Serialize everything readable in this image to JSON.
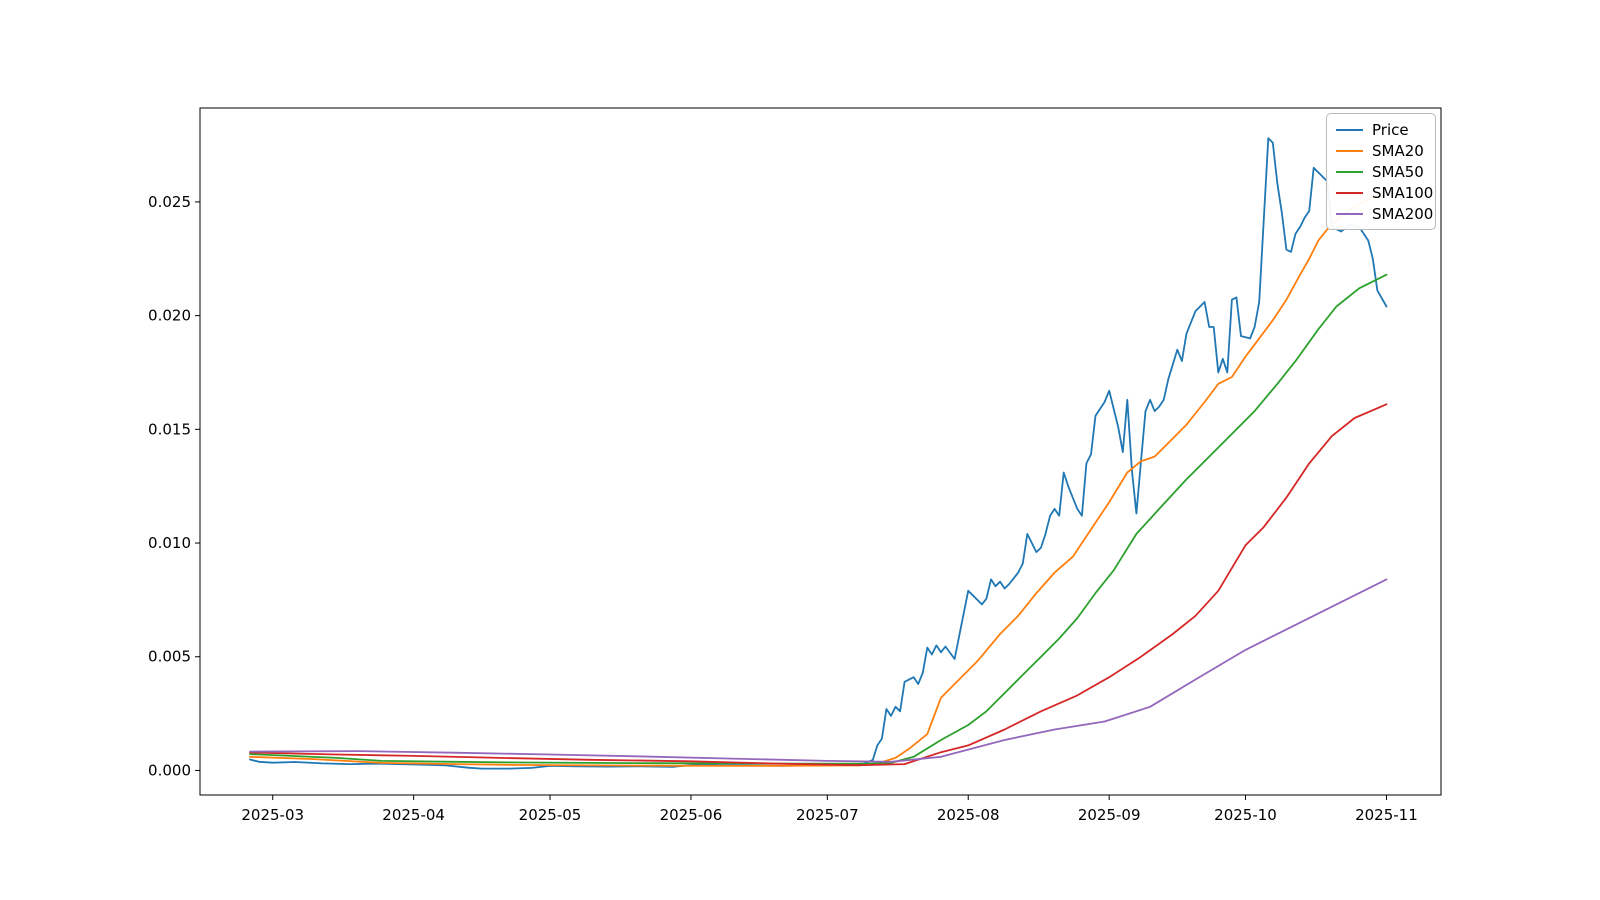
{
  "figure": {
    "background": "#ffffff",
    "legend_title": "",
    "legend_position": "upper right"
  },
  "chart_data": {
    "type": "line",
    "title": "",
    "xlabel": "",
    "ylabel": "",
    "grid": false,
    "legend_position": "upper right",
    "x_range": [
      "2025-02-13",
      "2025-11-13"
    ],
    "y_range": [
      -0.00108,
      0.02913
    ],
    "x_ticks": [
      {
        "date": "2025-03-01",
        "label": "2025-03"
      },
      {
        "date": "2025-04-01",
        "label": "2025-04"
      },
      {
        "date": "2025-05-01",
        "label": "2025-05"
      },
      {
        "date": "2025-06-01",
        "label": "2025-06"
      },
      {
        "date": "2025-07-01",
        "label": "2025-07"
      },
      {
        "date": "2025-08-01",
        "label": "2025-08"
      },
      {
        "date": "2025-09-01",
        "label": "2025-09"
      },
      {
        "date": "2025-10-01",
        "label": "2025-10"
      },
      {
        "date": "2025-11-01",
        "label": "2025-11"
      }
    ],
    "y_ticks": [
      {
        "value": 0.0,
        "label": "0.000"
      },
      {
        "value": 0.005,
        "label": "0.005"
      },
      {
        "value": 0.01,
        "label": "0.010"
      },
      {
        "value": 0.015,
        "label": "0.015"
      },
      {
        "value": 0.02,
        "label": "0.020"
      },
      {
        "value": 0.025,
        "label": "0.025"
      }
    ],
    "series": [
      {
        "name": "Price",
        "color": "#1f77b4",
        "points": [
          [
            "2025-02-24",
            0.00048
          ],
          [
            "2025-02-26",
            0.00038
          ],
          [
            "2025-03-01",
            0.00034
          ],
          [
            "2025-03-06",
            0.00037
          ],
          [
            "2025-03-12",
            0.00031
          ],
          [
            "2025-03-18",
            0.00028
          ],
          [
            "2025-03-24",
            0.0003
          ],
          [
            "2025-04-01",
            0.00026
          ],
          [
            "2025-04-08",
            0.00022
          ],
          [
            "2025-04-13",
            0.00012
          ],
          [
            "2025-04-16",
            8e-05
          ],
          [
            "2025-04-22",
            8e-05
          ],
          [
            "2025-04-27",
            0.00011
          ],
          [
            "2025-05-01",
            0.0002
          ],
          [
            "2025-05-07",
            0.00018
          ],
          [
            "2025-05-14",
            0.00017
          ],
          [
            "2025-05-21",
            0.00018
          ],
          [
            "2025-05-28",
            0.00016
          ],
          [
            "2025-06-03",
            0.00028
          ],
          [
            "2025-06-07",
            0.00024
          ],
          [
            "2025-06-14",
            0.00022
          ],
          [
            "2025-06-21",
            0.0002
          ],
          [
            "2025-06-28",
            0.00023
          ],
          [
            "2025-07-04",
            0.00026
          ],
          [
            "2025-07-09",
            0.0003
          ],
          [
            "2025-07-11",
            0.00046
          ],
          [
            "2025-07-12",
            0.0011
          ],
          [
            "2025-07-13",
            0.0014
          ],
          [
            "2025-07-14",
            0.0027
          ],
          [
            "2025-07-15",
            0.0024
          ],
          [
            "2025-07-16",
            0.0028
          ],
          [
            "2025-07-17",
            0.0026
          ],
          [
            "2025-07-18",
            0.0039
          ],
          [
            "2025-07-20",
            0.0041
          ],
          [
            "2025-07-21",
            0.0038
          ],
          [
            "2025-07-22",
            0.0043
          ],
          [
            "2025-07-23",
            0.0054
          ],
          [
            "2025-07-24",
            0.0051
          ],
          [
            "2025-07-25",
            0.0055
          ],
          [
            "2025-07-26",
            0.0052
          ],
          [
            "2025-07-27",
            0.00545
          ],
          [
            "2025-07-29",
            0.0049
          ],
          [
            "2025-08-01",
            0.0079
          ],
          [
            "2025-08-02",
            0.0077
          ],
          [
            "2025-08-04",
            0.0073
          ],
          [
            "2025-08-05",
            0.00755
          ],
          [
            "2025-08-06",
            0.0084
          ],
          [
            "2025-08-07",
            0.0081
          ],
          [
            "2025-08-08",
            0.0083
          ],
          [
            "2025-08-09",
            0.008
          ],
          [
            "2025-08-10",
            0.0082
          ],
          [
            "2025-08-12",
            0.0087
          ],
          [
            "2025-08-13",
            0.0091
          ],
          [
            "2025-08-14",
            0.0104
          ],
          [
            "2025-08-16",
            0.0096
          ],
          [
            "2025-08-17",
            0.0098
          ],
          [
            "2025-08-18",
            0.0104
          ],
          [
            "2025-08-19",
            0.0112
          ],
          [
            "2025-08-20",
            0.0115
          ],
          [
            "2025-08-21",
            0.0112
          ],
          [
            "2025-08-22",
            0.0131
          ],
          [
            "2025-08-23",
            0.0125
          ],
          [
            "2025-08-25",
            0.0115
          ],
          [
            "2025-08-26",
            0.0112
          ],
          [
            "2025-08-27",
            0.0135
          ],
          [
            "2025-08-28",
            0.0139
          ],
          [
            "2025-08-29",
            0.0156
          ],
          [
            "2025-08-31",
            0.0162
          ],
          [
            "2025-09-01",
            0.0167
          ],
          [
            "2025-09-02",
            0.0159
          ],
          [
            "2025-09-03",
            0.0151
          ],
          [
            "2025-09-04",
            0.014
          ],
          [
            "2025-09-05",
            0.0163
          ],
          [
            "2025-09-06",
            0.0132
          ],
          [
            "2025-09-07",
            0.0113
          ],
          [
            "2025-09-08",
            0.0136
          ],
          [
            "2025-09-09",
            0.0158
          ],
          [
            "2025-09-10",
            0.0163
          ],
          [
            "2025-09-11",
            0.0158
          ],
          [
            "2025-09-12",
            0.016
          ],
          [
            "2025-09-13",
            0.0163
          ],
          [
            "2025-09-14",
            0.0172
          ],
          [
            "2025-09-16",
            0.0185
          ],
          [
            "2025-09-17",
            0.018
          ],
          [
            "2025-09-18",
            0.0192
          ],
          [
            "2025-09-20",
            0.0202
          ],
          [
            "2025-09-22",
            0.0206
          ],
          [
            "2025-09-23",
            0.0195
          ],
          [
            "2025-09-24",
            0.0195
          ],
          [
            "2025-09-25",
            0.0175
          ],
          [
            "2025-09-26",
            0.0181
          ],
          [
            "2025-09-27",
            0.0175
          ],
          [
            "2025-09-28",
            0.0207
          ],
          [
            "2025-09-29",
            0.0208
          ],
          [
            "2025-09-30",
            0.0191
          ],
          [
            "2025-10-02",
            0.019
          ],
          [
            "2025-10-03",
            0.0195
          ],
          [
            "2025-10-04",
            0.0206
          ],
          [
            "2025-10-06",
            0.0278
          ],
          [
            "2025-10-07",
            0.0276
          ],
          [
            "2025-10-08",
            0.0258
          ],
          [
            "2025-10-09",
            0.0245
          ],
          [
            "2025-10-10",
            0.0229
          ],
          [
            "2025-10-11",
            0.0228
          ],
          [
            "2025-10-12",
            0.0236
          ],
          [
            "2025-10-13",
            0.0239
          ],
          [
            "2025-10-14",
            0.0243
          ],
          [
            "2025-10-15",
            0.0246
          ],
          [
            "2025-10-16",
            0.0265
          ],
          [
            "2025-10-17",
            0.0263
          ],
          [
            "2025-10-19",
            0.0259
          ],
          [
            "2025-10-20",
            0.0239
          ],
          [
            "2025-10-22",
            0.0237
          ],
          [
            "2025-10-24",
            0.024
          ],
          [
            "2025-10-26",
            0.0239
          ],
          [
            "2025-10-28",
            0.0233
          ],
          [
            "2025-10-29",
            0.0225
          ],
          [
            "2025-10-30",
            0.0211
          ],
          [
            "2025-11-01",
            0.0204
          ]
        ]
      },
      {
        "name": "SMA20",
        "color": "#ff7f0e",
        "points": [
          [
            "2025-02-24",
            0.0006
          ],
          [
            "2025-03-10",
            0.0005
          ],
          [
            "2025-03-25",
            0.00033
          ],
          [
            "2025-04-10",
            0.00028
          ],
          [
            "2025-04-25",
            0.00024
          ],
          [
            "2025-05-10",
            0.00022
          ],
          [
            "2025-05-25",
            0.00021
          ],
          [
            "2025-06-10",
            0.0002
          ],
          [
            "2025-06-25",
            0.00021
          ],
          [
            "2025-07-08",
            0.00022
          ],
          [
            "2025-07-12",
            0.0003
          ],
          [
            "2025-07-16",
            0.00055
          ],
          [
            "2025-07-19",
            0.00095
          ],
          [
            "2025-07-23",
            0.0016
          ],
          [
            "2025-07-26",
            0.0032
          ],
          [
            "2025-07-30",
            0.004
          ],
          [
            "2025-08-03",
            0.0048
          ],
          [
            "2025-08-08",
            0.006
          ],
          [
            "2025-08-12",
            0.0068
          ],
          [
            "2025-08-16",
            0.0078
          ],
          [
            "2025-08-20",
            0.0087
          ],
          [
            "2025-08-24",
            0.0094
          ],
          [
            "2025-08-28",
            0.0106
          ],
          [
            "2025-09-01",
            0.0118
          ],
          [
            "2025-09-05",
            0.0131
          ],
          [
            "2025-09-08",
            0.0136
          ],
          [
            "2025-09-11",
            0.0138
          ],
          [
            "2025-09-14",
            0.0144
          ],
          [
            "2025-09-18",
            0.0152
          ],
          [
            "2025-09-22",
            0.0162
          ],
          [
            "2025-09-25",
            0.017
          ],
          [
            "2025-09-28",
            0.0173
          ],
          [
            "2025-10-01",
            0.0182
          ],
          [
            "2025-10-04",
            0.019
          ],
          [
            "2025-10-07",
            0.0198
          ],
          [
            "2025-10-10",
            0.0207
          ],
          [
            "2025-10-13",
            0.0218
          ],
          [
            "2025-10-15",
            0.0225
          ],
          [
            "2025-10-17",
            0.0233
          ],
          [
            "2025-10-19",
            0.0238
          ],
          [
            "2025-10-21",
            0.0242
          ],
          [
            "2025-10-25",
            0.0248
          ],
          [
            "2025-11-01",
            0.0255
          ]
        ]
      },
      {
        "name": "SMA50",
        "color": "#2ca02c",
        "points": [
          [
            "2025-02-24",
            0.00072
          ],
          [
            "2025-03-15",
            0.00055
          ],
          [
            "2025-03-25",
            0.00042
          ],
          [
            "2025-04-10",
            0.00038
          ],
          [
            "2025-04-25",
            0.00035
          ],
          [
            "2025-05-10",
            0.00033
          ],
          [
            "2025-05-25",
            0.00032
          ],
          [
            "2025-06-10",
            0.00031
          ],
          [
            "2025-06-25",
            0.0003
          ],
          [
            "2025-07-10",
            0.0003
          ],
          [
            "2025-07-15",
            0.00033
          ],
          [
            "2025-07-20",
            0.0006
          ],
          [
            "2025-07-26",
            0.00134
          ],
          [
            "2025-08-01",
            0.002
          ],
          [
            "2025-08-05",
            0.0026
          ],
          [
            "2025-08-09",
            0.0034
          ],
          [
            "2025-08-13",
            0.0042
          ],
          [
            "2025-08-17",
            0.005
          ],
          [
            "2025-08-21",
            0.0058
          ],
          [
            "2025-08-25",
            0.0067
          ],
          [
            "2025-08-29",
            0.0078
          ],
          [
            "2025-09-02",
            0.0088
          ],
          [
            "2025-09-07",
            0.0104
          ],
          [
            "2025-09-12",
            0.0115
          ],
          [
            "2025-09-18",
            0.0128
          ],
          [
            "2025-09-23",
            0.0138
          ],
          [
            "2025-09-28",
            0.0148
          ],
          [
            "2025-10-03",
            0.0158
          ],
          [
            "2025-10-08",
            0.017
          ],
          [
            "2025-10-12",
            0.018
          ],
          [
            "2025-10-17",
            0.0194
          ],
          [
            "2025-10-21",
            0.0204
          ],
          [
            "2025-10-26",
            0.0212
          ],
          [
            "2025-11-01",
            0.0218
          ]
        ]
      },
      {
        "name": "SMA100",
        "color": "#d62728",
        "points": [
          [
            "2025-02-24",
            0.00079
          ],
          [
            "2025-03-15",
            0.0007
          ],
          [
            "2025-04-01",
            0.00064
          ],
          [
            "2025-04-20",
            0.00055
          ],
          [
            "2025-05-10",
            0.00047
          ],
          [
            "2025-06-01",
            0.0004
          ],
          [
            "2025-06-20",
            0.0003
          ],
          [
            "2025-07-08",
            0.00023
          ],
          [
            "2025-07-18",
            0.00028
          ],
          [
            "2025-07-26",
            0.0008
          ],
          [
            "2025-08-01",
            0.0011
          ],
          [
            "2025-08-09",
            0.0018
          ],
          [
            "2025-08-17",
            0.0026
          ],
          [
            "2025-08-25",
            0.0033
          ],
          [
            "2025-09-01",
            0.0041
          ],
          [
            "2025-09-08",
            0.005
          ],
          [
            "2025-09-15",
            0.006
          ],
          [
            "2025-09-20",
            0.0068
          ],
          [
            "2025-09-25",
            0.0079
          ],
          [
            "2025-10-01",
            0.0099
          ],
          [
            "2025-10-05",
            0.0107
          ],
          [
            "2025-10-10",
            0.012
          ],
          [
            "2025-10-15",
            0.0135
          ],
          [
            "2025-10-20",
            0.0147
          ],
          [
            "2025-10-25",
            0.0155
          ],
          [
            "2025-11-01",
            0.0161
          ]
        ]
      },
      {
        "name": "SMA200",
        "color": "#9467bd",
        "points": [
          [
            "2025-02-24",
            0.00083
          ],
          [
            "2025-03-20",
            0.00085
          ],
          [
            "2025-04-10",
            0.00078
          ],
          [
            "2025-05-01",
            0.0007
          ],
          [
            "2025-05-20",
            0.00062
          ],
          [
            "2025-06-10",
            0.00052
          ],
          [
            "2025-07-01",
            0.00042
          ],
          [
            "2025-07-15",
            0.00038
          ],
          [
            "2025-07-26",
            0.0006
          ],
          [
            "2025-08-09",
            0.00134
          ],
          [
            "2025-08-20",
            0.0018
          ],
          [
            "2025-08-31",
            0.00215
          ],
          [
            "2025-09-10",
            0.0028
          ],
          [
            "2025-09-20",
            0.004
          ],
          [
            "2025-10-01",
            0.0053
          ],
          [
            "2025-10-10",
            0.0062
          ],
          [
            "2025-10-20",
            0.0072
          ],
          [
            "2025-11-01",
            0.0084
          ]
        ]
      }
    ]
  }
}
